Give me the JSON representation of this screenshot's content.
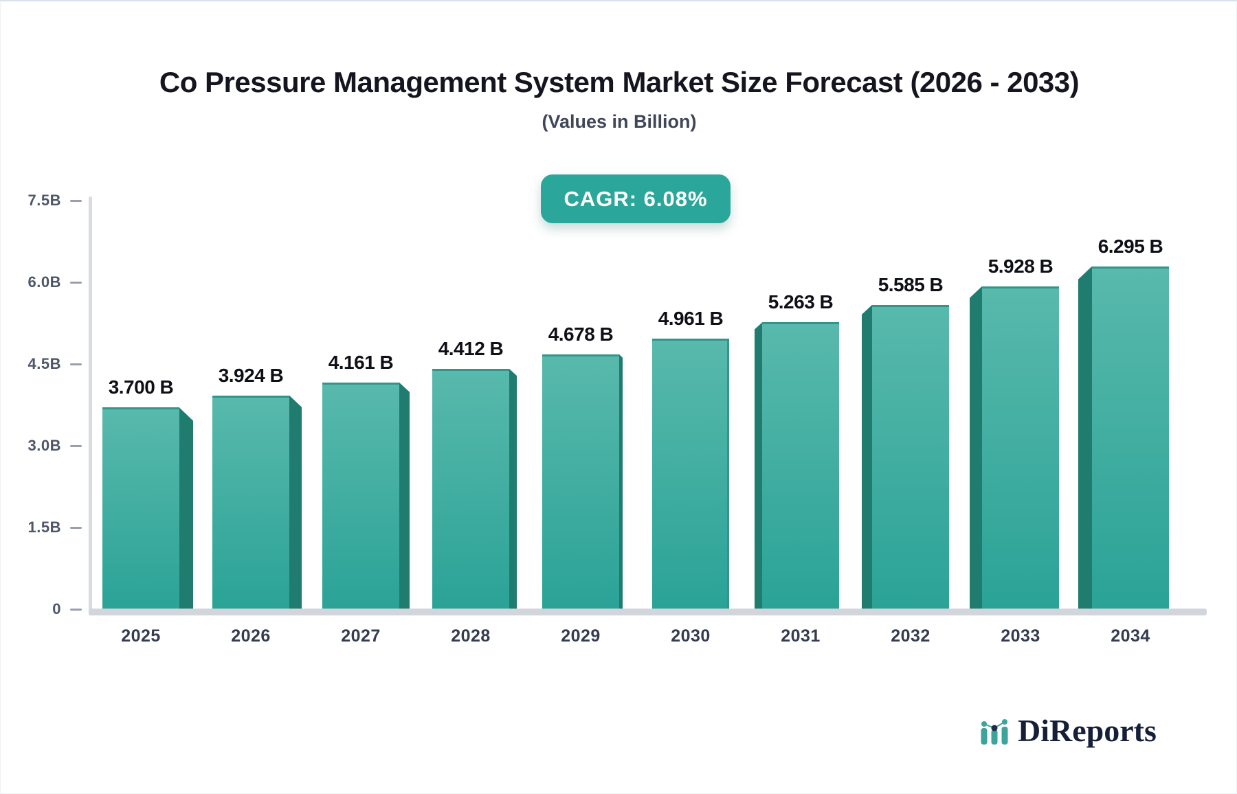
{
  "header": {
    "title": "Co Pressure Management System Market Size Forecast (2026 - 2033)",
    "subtitle": "(Values in Billion)",
    "cagr_label": "CAGR: 6.08%"
  },
  "chart_data": {
    "type": "bar",
    "title": "Co Pressure Management System Market Size Forecast (2026 - 2033)",
    "subtitle": "(Values in Billion)",
    "xlabel": "",
    "ylabel": "",
    "categories": [
      "2025",
      "2026",
      "2027",
      "2028",
      "2029",
      "2030",
      "2031",
      "2032",
      "2033",
      "2034"
    ],
    "values": [
      3.7,
      3.924,
      4.161,
      4.412,
      4.678,
      4.961,
      5.263,
      5.585,
      5.928,
      6.295
    ],
    "bar_labels": [
      "3.700 B",
      "3.924 B",
      "4.161 B",
      "4.412 B",
      "4.678 B",
      "4.961 B",
      "5.263 B",
      "5.585 B",
      "5.928 B",
      "6.295 B"
    ],
    "ylim": [
      0,
      7.5
    ],
    "yticks": {
      "values": [
        0,
        1.5,
        3.0,
        4.5,
        6.0,
        7.5
      ],
      "labels": [
        "0",
        "1.5B",
        "3.0B",
        "4.5B",
        "6.0B",
        "7.5B"
      ]
    },
    "grid": false,
    "legend": false,
    "cagr": "6.08%",
    "colors": {
      "bar_gradient_top": "#58b9ac",
      "bar_gradient_bottom": "#2aa296",
      "bar_side": "#1f7c6f",
      "bar_top_edge": "#2f968a",
      "axis": "#d8dbe2",
      "baseline": "#d2d5dc",
      "tick_dash": "#99a0ac",
      "badge_bg": "#2aa79a",
      "badge_text": "#ffffff"
    }
  },
  "branding": {
    "name": "DiReports",
    "icon": "mini-bar-chart-logo-icon",
    "text_color": "#152038",
    "icon_color": "#3da49b",
    "icon_accent_color": "#1b2a4a"
  }
}
